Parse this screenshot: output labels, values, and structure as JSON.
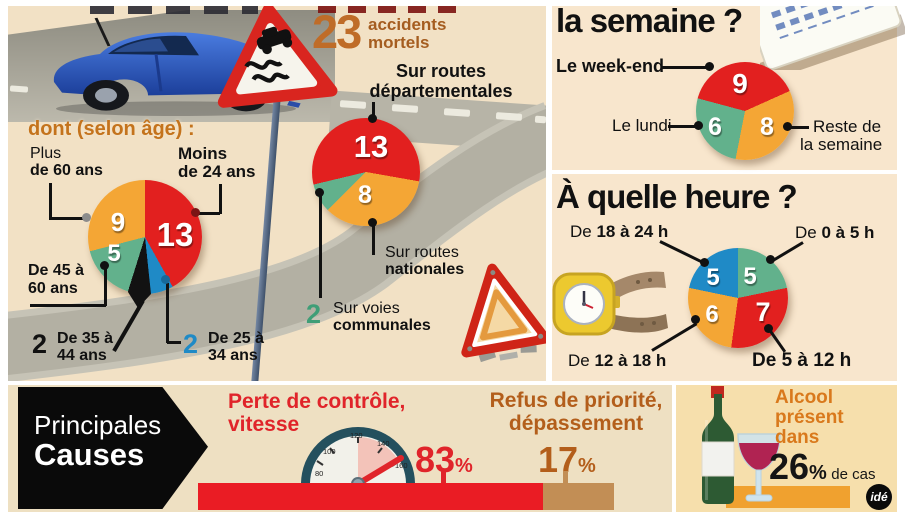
{
  "header": {
    "big_number": 23,
    "label_line1": "accidents",
    "label_line2": "mortels"
  },
  "age": {
    "title": "dont (selon âge) :",
    "plus60_l1": "Plus",
    "plus60_l2": "de 60 ans",
    "moins24_l1": "Moins",
    "moins24_l2": "de 24 ans",
    "a4560_l1": "De 45 à",
    "a4560_l2": "60 ans",
    "a3544_l1": "De 35 à",
    "a3544_l2": "44 ans",
    "a2534_l1": "De 25 à",
    "a2534_l2": "34 ans"
  },
  "routes": {
    "dep_l1": "Sur routes",
    "dep_l2": "départementales",
    "nat_l1": "Sur routes",
    "nat_l2": "nationales",
    "com_l1": "Sur voies",
    "com_l2": "communales"
  },
  "week": {
    "title": "la semaine ?",
    "weekend": "Le week-end",
    "monday": "Le lundi",
    "rest_l1": "Reste de",
    "rest_l2": "la semaine"
  },
  "hours": {
    "title": "À quelle heure ?",
    "h1824_pre": "De",
    "h1824": "18 à 24 h",
    "h05_pre": "De",
    "h05": "0 à 5 h",
    "h1218_pre": "De",
    "h1218": "12 à 18 h",
    "h512_pre": "De",
    "h512": "5 à 12 h"
  },
  "causes": {
    "heading_l1": "Principales",
    "heading_l2": "Causes",
    "c1_l1": "Perte de contrôle,",
    "c1_l2": "vitesse",
    "c2_l1": "Refus de priorité,",
    "c2_l2": "dépassement",
    "percent": "%",
    "gauge": [
      "80",
      "100",
      "120",
      "140",
      "160"
    ]
  },
  "alcohol": {
    "l1": "Alcool",
    "l2": "présent",
    "l3": "dans",
    "percent": "%",
    "suffix": "de cas"
  },
  "brand": {
    "logo": "idé"
  },
  "colors": {
    "red": "#e2201f",
    "orange": "#f4a635",
    "green": "#62b18c",
    "blue": "#1f8ac6",
    "black": "#141414",
    "bar_brown": "#c28e55",
    "text_brown": "#b35e1b",
    "beige": "#f2e1c5",
    "road_gray": "#b5b2a5"
  },
  "chart_data": [
    {
      "type": "pie",
      "title": "dont (selon âge) :",
      "total": 31,
      "start_angle_deg": 0,
      "slices": [
        {
          "label": "Moins de 24 ans",
          "value": 13,
          "color": "#e2201f"
        },
        {
          "label": "De 25 à 34 ans",
          "value": 2,
          "color": "#1f8ac6"
        },
        {
          "label": "De 35 à 44 ans",
          "value": 2,
          "color": "#141414"
        },
        {
          "label": "De 45 à 60 ans",
          "value": 5,
          "color": "#62b18c"
        },
        {
          "label": "Plus de 60 ans",
          "value": 9,
          "color": "#f4a635"
        }
      ]
    },
    {
      "type": "pie",
      "total": 23,
      "start_angle_deg": 100,
      "slices": [
        {
          "label": "Sur routes nationales",
          "value": 8,
          "color": "#f4a635"
        },
        {
          "label": "Sur voies communales",
          "value": 2,
          "color": "#62b18c"
        },
        {
          "label": "Sur routes départementales",
          "value": 13,
          "color": "#e2201f"
        }
      ]
    },
    {
      "type": "pie",
      "title": "la semaine ?",
      "total": 23,
      "start_angle_deg": 285,
      "slices": [
        {
          "label": "Le week-end",
          "value": 9,
          "color": "#e2201f"
        },
        {
          "label": "Reste de la semaine",
          "value": 8,
          "color": "#f4a635"
        },
        {
          "label": "Le lundi",
          "value": 6,
          "color": "#62b18c"
        }
      ]
    },
    {
      "type": "pie",
      "title": "À quelle heure ?",
      "total": 23,
      "start_angle_deg": 0,
      "slices": [
        {
          "label": "De 0 à 5 h",
          "value": 5,
          "color": "#62b18c"
        },
        {
          "label": "De 5 à 12 h",
          "value": 7,
          "color": "#e2201f"
        },
        {
          "label": "De 12 à 18 h",
          "value": 6,
          "color": "#f4a635"
        },
        {
          "label": "De 18 à 24 h",
          "value": 5,
          "color": "#1f8ac6"
        }
      ]
    },
    {
      "type": "bar",
      "title": "Principales Causes",
      "unit": "%",
      "categories": [
        "Perte de contrôle, vitesse",
        "Refus de priorité, dépassement"
      ],
      "values": [
        83,
        17
      ],
      "colors": [
        "#ea1c24",
        "#c28e55"
      ],
      "annotation": {
        "label": "Alcool présent dans",
        "value": 26,
        "unit": "% de cas"
      }
    }
  ]
}
